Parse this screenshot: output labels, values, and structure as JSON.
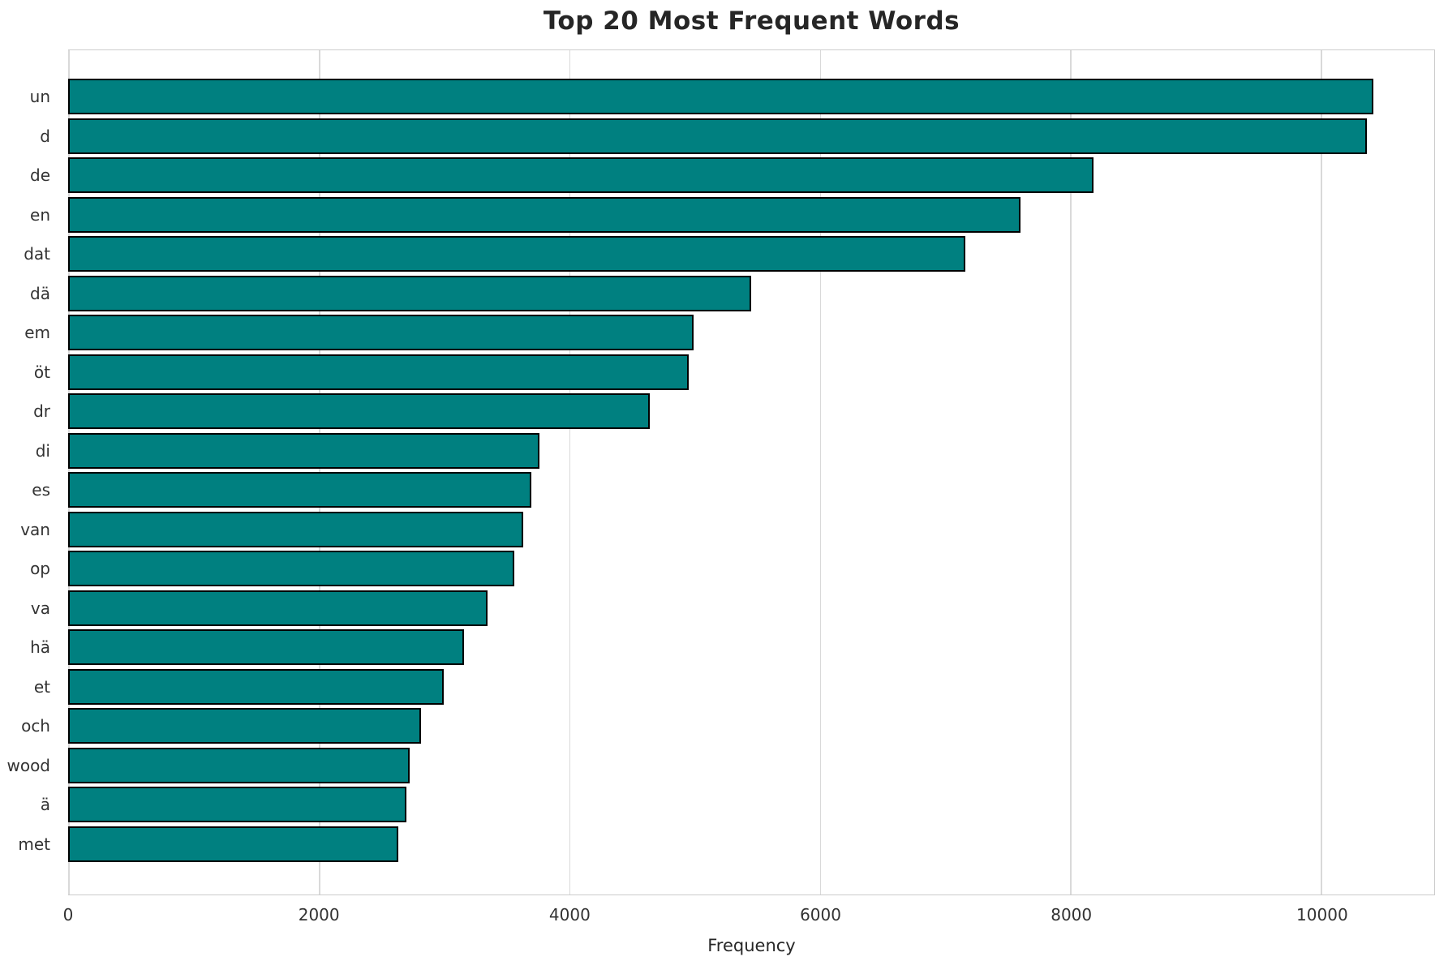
{
  "chart_data": {
    "type": "bar",
    "orientation": "horizontal",
    "title": "Top 20 Most Frequent Words",
    "xlabel": "Frequency",
    "ylabel": "",
    "categories": [
      "un",
      "d",
      "de",
      "en",
      "dat",
      "dä",
      "em",
      "öt",
      "dr",
      "di",
      "es",
      "van",
      "op",
      "va",
      "hä",
      "et",
      "och",
      "wood",
      "ä",
      "met"
    ],
    "values": [
      10380,
      10330,
      8150,
      7570,
      7130,
      5420,
      4960,
      4920,
      4610,
      3730,
      3670,
      3600,
      3530,
      3320,
      3130,
      2970,
      2790,
      2700,
      2670,
      2610
    ],
    "xticks": [
      0,
      2000,
      4000,
      6000,
      8000,
      10000
    ],
    "xlim": [
      0,
      10900
    ],
    "grid": "vertical",
    "legend": "none",
    "colors": {
      "bar_fill": "#008080",
      "bar_edge": "#000000",
      "grid": "#d9d9d9",
      "spine": "#cccccc",
      "text": "#262626",
      "tick_text": "#333333",
      "background": "#ffffff"
    }
  }
}
